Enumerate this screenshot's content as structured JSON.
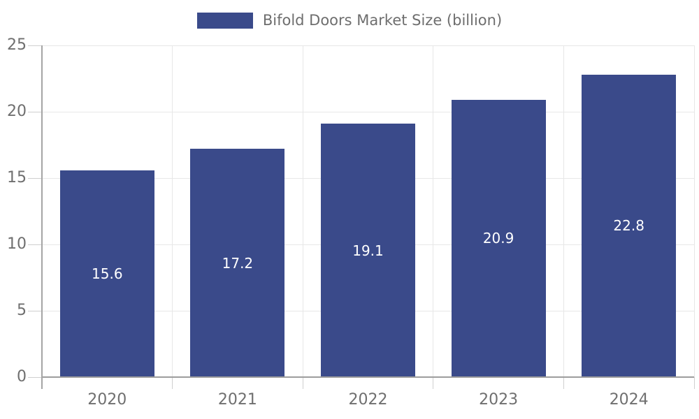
{
  "legend": {
    "label": "Bifold Doors Market Size (billion)"
  },
  "colors": {
    "bar": "#3a4a8a",
    "value_label": "#ffffff",
    "grid": "#e7e7e7",
    "axis": "#9d9d9d",
    "tick_text": "#6f6f6f",
    "legend_text": "#6e6e6e"
  },
  "chart_data": {
    "type": "bar",
    "title": "Bifold Doors Market Size (billion)",
    "categories": [
      "2020",
      "2021",
      "2022",
      "2023",
      "2024"
    ],
    "series": [
      {
        "name": "Bifold Doors Market Size (billion)",
        "values": [
          15.6,
          17.2,
          19.1,
          20.9,
          22.8
        ]
      }
    ],
    "value_labels": [
      "15.6",
      "17.2",
      "19.1",
      "20.9",
      "22.8"
    ],
    "xlabel": "",
    "ylabel": "",
    "ylim": [
      0,
      25
    ],
    "yticks": [
      0,
      5,
      10,
      15,
      20,
      25
    ],
    "grid": true,
    "legend_position": "top"
  }
}
